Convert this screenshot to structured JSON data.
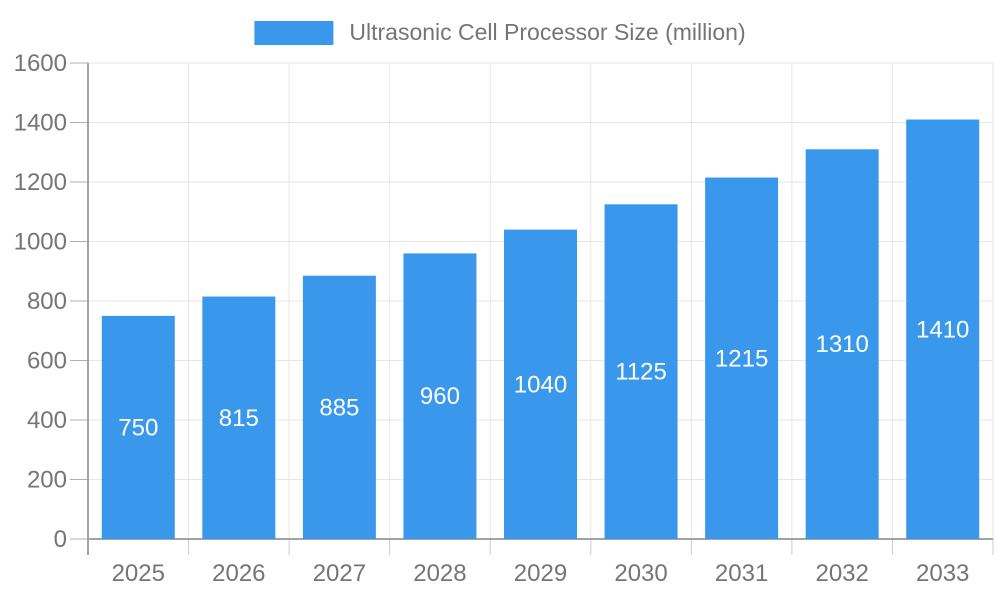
{
  "legend": {
    "label": "Ultrasonic Cell Processor Size (million)"
  },
  "chart_data": {
    "type": "bar",
    "title": "Ultrasonic Cell Processor Size (million)",
    "series_name": "Ultrasonic Cell Processor Size (million)",
    "categories": [
      "2025",
      "2026",
      "2027",
      "2028",
      "2029",
      "2030",
      "2031",
      "2032",
      "2033"
    ],
    "values": [
      750,
      815,
      885,
      960,
      1040,
      1125,
      1215,
      1310,
      1410
    ],
    "xlabel": "",
    "ylabel": "",
    "ylim": [
      0,
      1600
    ],
    "ytick_step": 200,
    "yticks": [
      0,
      200,
      400,
      600,
      800,
      1000,
      1200,
      1400,
      1600
    ],
    "grid": true,
    "legend_position": "top",
    "colors": {
      "bar": "#3A98EC",
      "bar_value_label": "#FFFFFF",
      "axis_text": "#757575",
      "legend_text": "#757575",
      "gridline": "#E6E6E6",
      "axis_line": "#A2A2A2",
      "y_tick": "#AFAFAF",
      "x_tick": "#CCCCCC",
      "background": "#FFFFFF"
    }
  }
}
